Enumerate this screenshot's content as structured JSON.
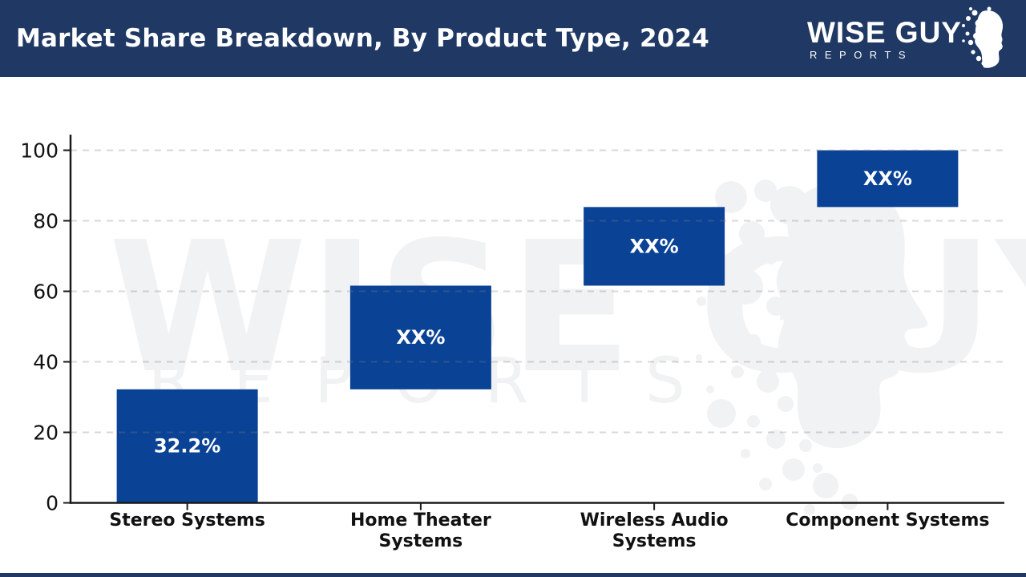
{
  "header": {
    "title": "Market Share Breakdown, By Product Type, 2024",
    "logo": {
      "line1": "WISE GUY",
      "line2": "REPORTS"
    }
  },
  "watermark": {
    "line1": "WISE GUY",
    "line2": "REPORTS"
  },
  "colors": {
    "header_bg": "#1f3864",
    "footer_bg": "#1f3864",
    "bar": "#0a4296",
    "grid": "#7f7f7f",
    "axis": "#1a1a1a",
    "tick_text": "#111111",
    "value_text": "#ffffff",
    "watermark": "#f1f2f3"
  },
  "chart_data": {
    "type": "bar",
    "subtype": "waterfall",
    "title": "Market Share Breakdown, By Product Type, 2024",
    "categories": [
      "Stereo Systems",
      "Home Theater\nSystems",
      "Wireless Audio\nSystems",
      "Component Systems"
    ],
    "segments": [
      {
        "category": "Stereo Systems",
        "start": 0,
        "end": 32.2,
        "value": 32.2,
        "value_label": "32.2%"
      },
      {
        "category": "Home Theater Systems",
        "start": 32.2,
        "end": 61.6,
        "value": 29.4,
        "value_label": "XX%"
      },
      {
        "category": "Wireless Audio Systems",
        "start": 61.6,
        "end": 83.9,
        "value": 22.3,
        "value_label": "XX%"
      },
      {
        "category": "Component Systems",
        "start": 83.9,
        "end": 100,
        "value": 16.1,
        "value_label": "XX%"
      }
    ],
    "xlabel": "",
    "ylabel": "",
    "ylim": [
      0,
      100
    ],
    "yticks": [
      0,
      20,
      40,
      60,
      80,
      100
    ],
    "grid": "horizontal dashed lines drawn over bars",
    "legend": "none",
    "bar_value_unit": "%"
  }
}
